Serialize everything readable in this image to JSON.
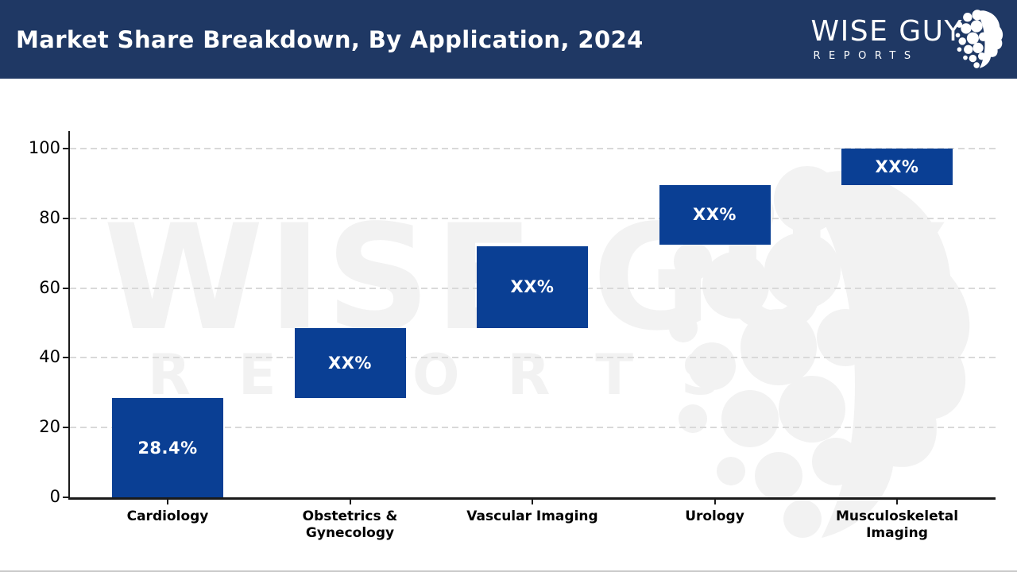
{
  "header": {
    "title": "Market Share Breakdown, By Application, 2024",
    "logo": {
      "line1": "WISE GUY",
      "line2": "REPORTS"
    },
    "bg_color": "#1f3864"
  },
  "watermark": {
    "line1": "WISE GUY",
    "line2": "REPORTS"
  },
  "icons": {
    "logo_head": "dotted-face-profile-icon",
    "watermark_head": "dotted-face-profile-icon"
  },
  "colors": {
    "header_bg": "#1f3864",
    "bar_fill": "#0a3f94",
    "gridline": "#d9d9d9",
    "axis": "#1a1a1a",
    "watermark": "#f2f2f2",
    "bar_label_text": "#ffffff"
  },
  "chart_data": {
    "type": "bar",
    "subtype": "floating-waterfall",
    "title": "Market Share Breakdown, By Application, 2024",
    "xlabel": "",
    "ylabel": "",
    "ylim": [
      0,
      100
    ],
    "yticks": [
      0,
      20,
      40,
      60,
      80,
      100
    ],
    "grid": "horizontal-dashed",
    "legend": "none",
    "categories": [
      "Cardiology",
      "Obstetrics &\nGynecology",
      "Vascular Imaging",
      "Urology",
      "Musculoskeletal\nImaging"
    ],
    "segments": [
      {
        "category": "Cardiology",
        "start": 0,
        "end": 28.4,
        "label": "28.4%"
      },
      {
        "category": "Obstetrics &\nGynecology",
        "start": 28.4,
        "end": 48.5,
        "label": "XX%"
      },
      {
        "category": "Vascular Imaging",
        "start": 48.5,
        "end": 72,
        "label": "XX%"
      },
      {
        "category": "Urology",
        "start": 72.5,
        "end": 89.5,
        "label": "XX%"
      },
      {
        "category": "Musculoskeletal\nImaging",
        "start": 89.5,
        "end": 100,
        "label": "XX%"
      }
    ]
  }
}
